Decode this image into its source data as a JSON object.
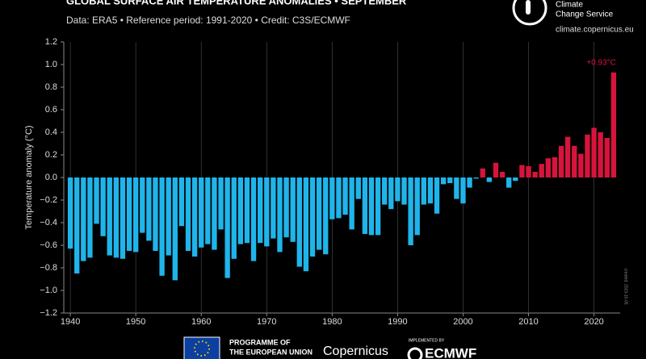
{
  "chart_data": {
    "type": "bar",
    "title": "GLOBAL SURFACE AIR TEMPERATURE ANOMALIES • SEPTEMBER",
    "subtitle": "Data: ERA5 • Reference period: 1991-2020 • Credit: C3S/ECMWF",
    "y_label": "Temperature anomaly (°C)",
    "annotation": "+0.93°C",
    "side_note": "created: 2023-10-05",
    "logo": {
      "name": [
        "Climate",
        "Change Service"
      ],
      "url": "climate.copernicus.eu"
    },
    "footer": {
      "eu": [
        "PROGRAMME OF",
        "THE EUROPEAN UNION"
      ],
      "copernicus": "Copernicus",
      "implemented": "IMPLEMENTED BY",
      "ecmwf": "ECMWF"
    },
    "x": [
      1940,
      1941,
      1942,
      1943,
      1944,
      1945,
      1946,
      1947,
      1948,
      1949,
      1950,
      1951,
      1952,
      1953,
      1954,
      1955,
      1956,
      1957,
      1958,
      1959,
      1960,
      1961,
      1962,
      1963,
      1964,
      1965,
      1966,
      1967,
      1968,
      1969,
      1970,
      1971,
      1972,
      1973,
      1974,
      1975,
      1976,
      1977,
      1978,
      1979,
      1980,
      1981,
      1982,
      1983,
      1984,
      1985,
      1986,
      1987,
      1988,
      1989,
      1990,
      1991,
      1992,
      1993,
      1994,
      1995,
      1996,
      1997,
      1998,
      1999,
      2000,
      2001,
      2002,
      2003,
      2004,
      2005,
      2006,
      2007,
      2008,
      2009,
      2010,
      2011,
      2012,
      2013,
      2014,
      2015,
      2016,
      2017,
      2018,
      2019,
      2020,
      2021,
      2022,
      2023
    ],
    "values": [
      -0.63,
      -0.85,
      -0.74,
      -0.71,
      -0.41,
      -0.52,
      -0.69,
      -0.71,
      -0.72,
      -0.65,
      -0.66,
      -0.49,
      -0.56,
      -0.65,
      -0.87,
      -0.69,
      -0.91,
      -0.43,
      -0.65,
      -0.7,
      -0.62,
      -0.59,
      -0.64,
      -0.46,
      -0.89,
      -0.72,
      -0.59,
      -0.58,
      -0.74,
      -0.58,
      -0.61,
      -0.54,
      -0.66,
      -0.53,
      -0.57,
      -0.79,
      -0.83,
      -0.7,
      -0.64,
      -0.68,
      -0.37,
      -0.36,
      -0.33,
      -0.46,
      -0.19,
      -0.5,
      -0.51,
      -0.51,
      -0.24,
      -0.28,
      -0.21,
      -0.24,
      -0.6,
      -0.51,
      -0.24,
      -0.23,
      -0.32,
      -0.06,
      -0.05,
      -0.19,
      -0.23,
      -0.09,
      -0.01,
      0.08,
      -0.04,
      0.13,
      0.05,
      -0.09,
      -0.03,
      0.11,
      0.1,
      0.05,
      0.12,
      0.17,
      0.18,
      0.28,
      0.36,
      0.28,
      0.21,
      0.38,
      0.44,
      0.4,
      0.35,
      0.93
    ],
    "positive_color": "#d7143c",
    "negative_color": "#1fb5ea",
    "xlim": [
      1939,
      2024
    ],
    "xticks": [
      1940,
      1950,
      1960,
      1970,
      1980,
      1990,
      2000,
      2010,
      2020
    ],
    "ylim": [
      -1.2,
      1.2
    ],
    "yticks": [
      {
        "value": -1.2,
        "label": "−1.2"
      },
      {
        "value": -1.0,
        "label": "−1.0"
      },
      {
        "value": -0.8,
        "label": "−0.8"
      },
      {
        "value": -0.6,
        "label": "−0.6"
      },
      {
        "value": -0.4,
        "label": "−0.4"
      },
      {
        "value": -0.2,
        "label": "−0.2"
      },
      {
        "value": 0,
        "label": "0.0"
      },
      0.2,
      0.4,
      0.6,
      0.8,
      {
        "value": 1.0,
        "label": "1.0"
      },
      1.2
    ],
    "grid": true
  }
}
